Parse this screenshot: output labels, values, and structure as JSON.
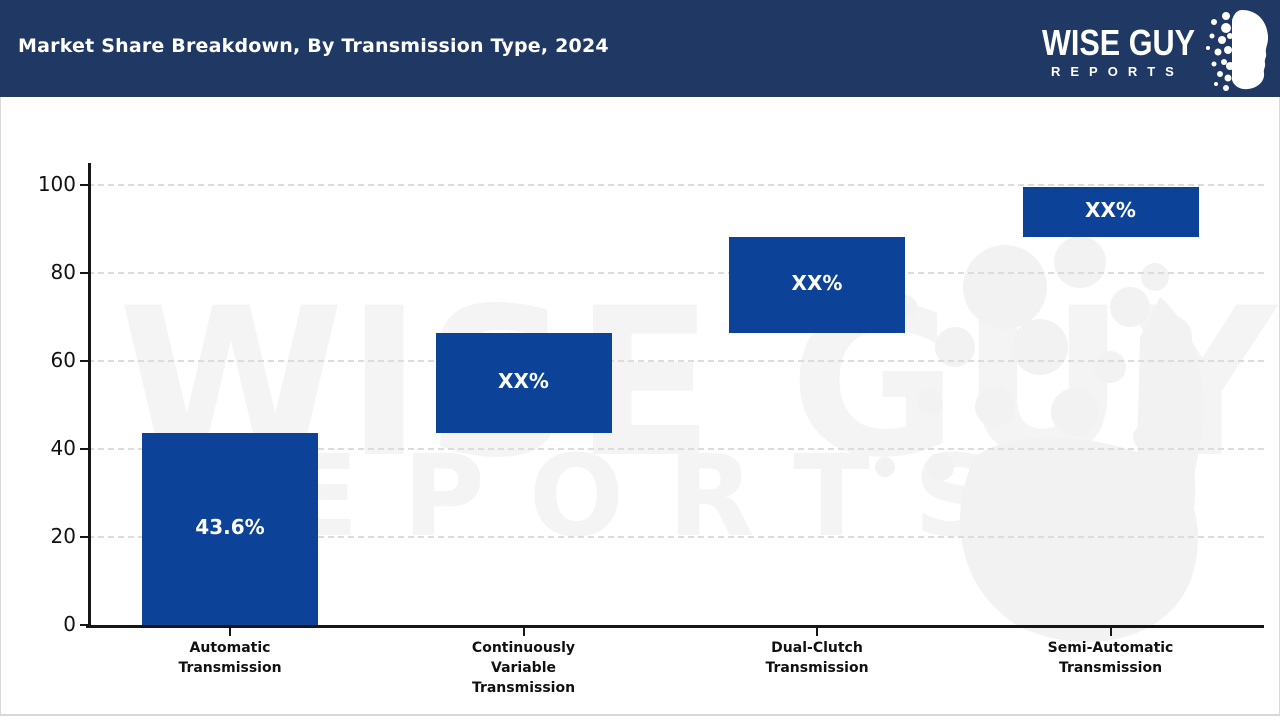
{
  "header": {
    "title": "Market Share Breakdown, By Transmission Type, 2024",
    "logo": {
      "line1": "WISE GUY",
      "line2": "REPORTS"
    }
  },
  "watermark": {
    "line1": "WISE GUY",
    "line2": "REPORTS"
  },
  "chart_data": {
    "type": "bar",
    "subtype": "waterfall",
    "title": "Market Share Breakdown, By Transmission Type, 2024",
    "categories": [
      "Automatic Transmission",
      "Continuously Variable Transmission",
      "Dual-Clutch Transmission",
      "Semi-Automatic Transmission"
    ],
    "category_lines": [
      [
        "Automatic",
        "Transmission"
      ],
      [
        "Continuously",
        "Variable",
        "Transmission"
      ],
      [
        "Dual-Clutch",
        "Transmission"
      ],
      [
        "Semi-Automatic",
        "Transmission"
      ]
    ],
    "bars": [
      {
        "start": 0,
        "end": 43.6,
        "label": "43.6%"
      },
      {
        "start": 43.6,
        "end": 66.3,
        "label": "XX%"
      },
      {
        "start": 66.3,
        "end": 88.2,
        "label": "XX%"
      },
      {
        "start": 88.2,
        "end": 99.6,
        "label": "XX%"
      }
    ],
    "yticks": [
      0,
      20,
      40,
      60,
      80,
      100
    ],
    "ylim": [
      0,
      105
    ],
    "xlabel": "",
    "ylabel": "",
    "grid": true,
    "legend": "none",
    "bar_color": "#0c4399",
    "bar_label_color": "#ffffff",
    "grid_color": "#dcdcdc",
    "axis_color": "#161616",
    "header_bg_color": "#203864",
    "watermark_color": "#f4f4f4"
  }
}
